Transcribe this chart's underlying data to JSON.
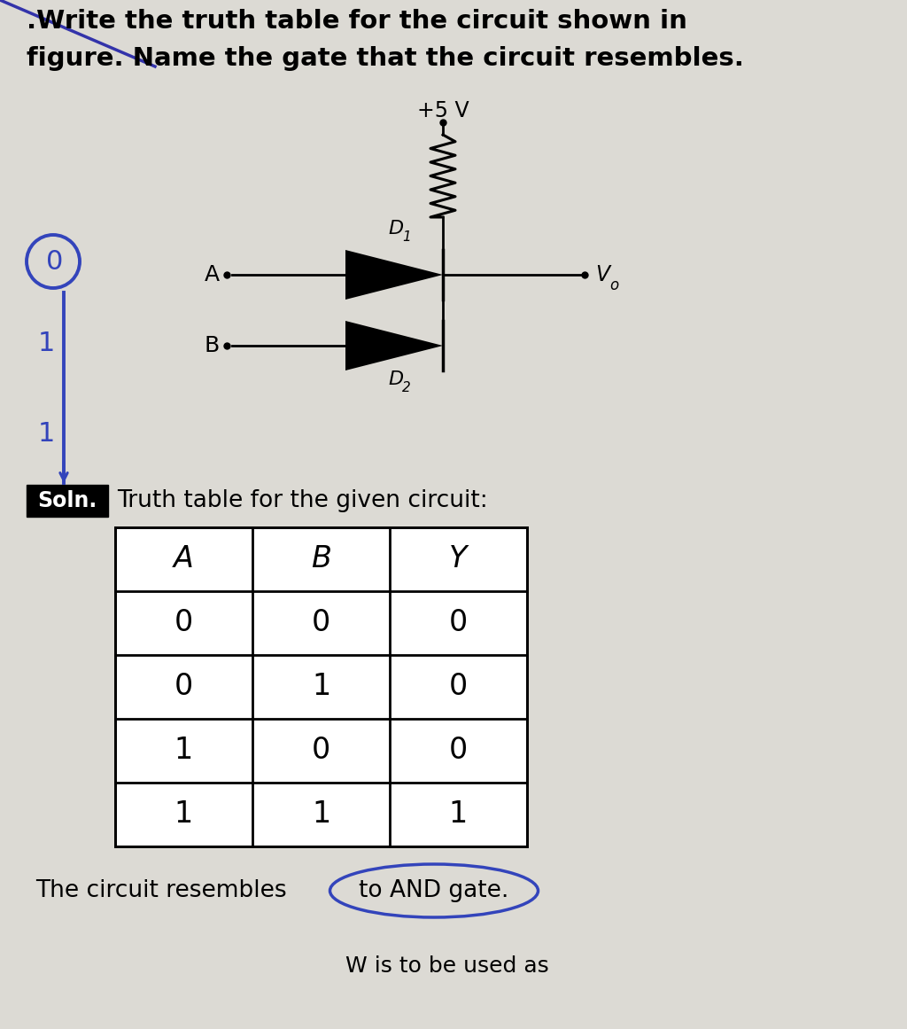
{
  "title_line1": ".Write the truth table for the circuit shown in",
  "title_line2": "figure. Name the gate that the circuit resembles.",
  "bg_color": "#c8c8c8",
  "soln_label": "Soln.",
  "soln_text": "Truth table for the given circuit:",
  "table_headers": [
    "A",
    "B",
    "Y"
  ],
  "table_data": [
    [
      "0",
      "0",
      "0"
    ],
    [
      "0",
      "1",
      "0"
    ],
    [
      "1",
      "0",
      "0"
    ],
    [
      "1",
      "1",
      "1"
    ]
  ],
  "conclusion_text1": "The circuit resembles ",
  "conclusion_circled": "to AND gate.",
  "bottom_text": "W is to be used as",
  "plus5v": "+5 V",
  "label_A": "A",
  "label_B": "B",
  "label_D1": "D",
  "label_D1_sub": "1",
  "label_D2": "D",
  "label_D2_sub": "2",
  "label_Vo": "V",
  "label_Vo_sub": "o",
  "annot_0": "0",
  "annot_1a": "1",
  "annot_1b": "1"
}
